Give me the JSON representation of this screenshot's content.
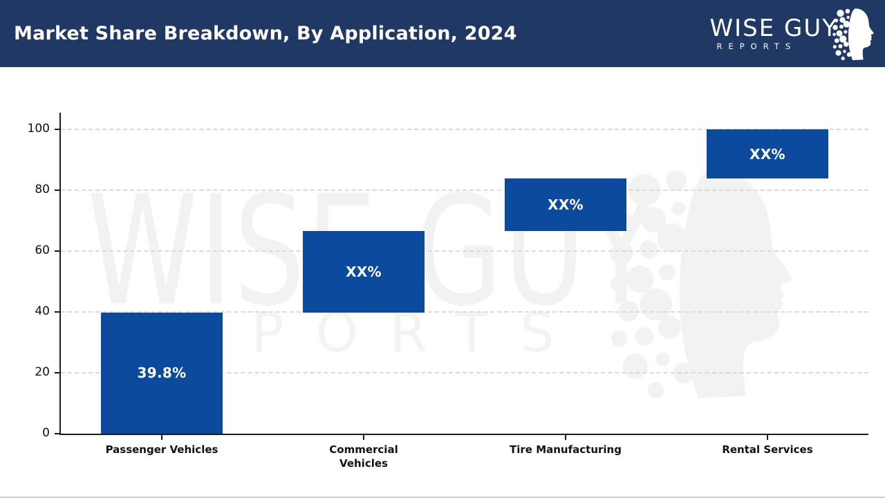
{
  "header": {
    "title": "Market Share Breakdown, By Application, 2024",
    "logo": {
      "wordmark": "WISE GUY",
      "tagline": "REPORTS"
    }
  },
  "watermark": {
    "wordmark": "WISE GUY",
    "tagline": "REPORTS"
  },
  "chart_data": {
    "type": "bar",
    "subtype": "cumulative-share-stacked-waterfall",
    "title": "Market Share Breakdown, By Application, 2024",
    "categories": [
      "Passenger Vehicles",
      "Commercial Vehicles",
      "Tire Manufacturing",
      "Rental Services"
    ],
    "category_label_lines": [
      [
        "Passenger Vehicles"
      ],
      [
        "Commercial",
        "Vehicles"
      ],
      [
        "Tire Manufacturing"
      ],
      [
        "Rental Services"
      ]
    ],
    "segments": [
      {
        "category": "Passenger Vehicles",
        "start": 0,
        "end": 39.8,
        "label": "39.8%"
      },
      {
        "category": "Commercial Vehicles",
        "start": 39.8,
        "end": 66.6,
        "label": "XX%"
      },
      {
        "category": "Tire Manufacturing",
        "start": 66.6,
        "end": 83.8,
        "label": "XX%"
      },
      {
        "category": "Rental Services",
        "start": 83.8,
        "end": 100,
        "label": "XX%"
      }
    ],
    "xlabel": "",
    "ylabel": "",
    "yticks": [
      0,
      20,
      40,
      60,
      80,
      100
    ],
    "ylim": [
      0,
      105
    ],
    "grid": {
      "axis": "y",
      "style": "dashed",
      "color": "#dadada"
    },
    "legend": "none",
    "colors": {
      "bar": "#0c4a9e",
      "bar_label": "#ffffff",
      "axis": "#1a1a1a",
      "tick_label": "#111111"
    }
  },
  "colors": {
    "header_bg": "#1f3864",
    "page_bg": "#ffffff",
    "watermark": "#f2f2f2",
    "logo_text": "#ffffff"
  }
}
